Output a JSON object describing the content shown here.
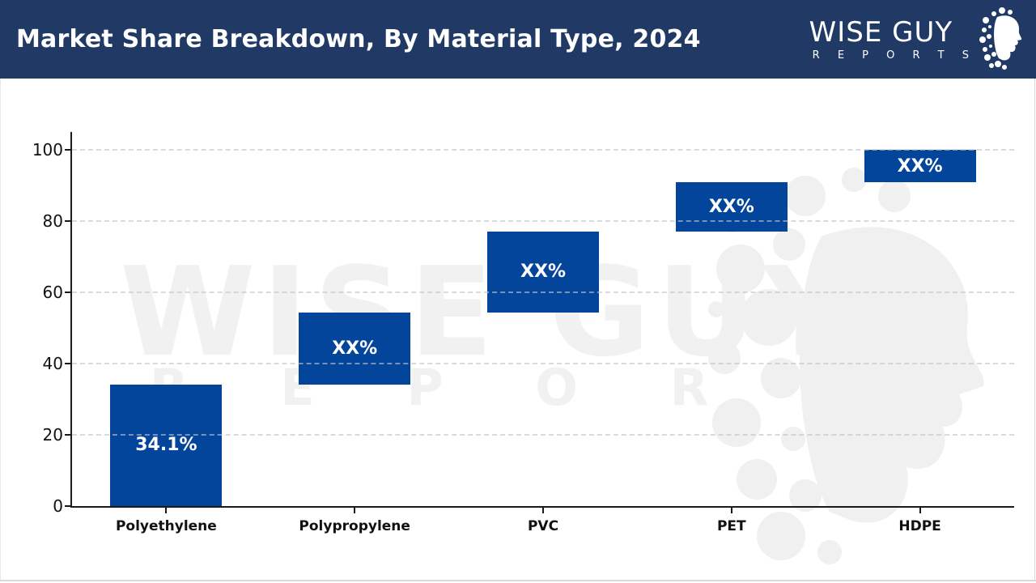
{
  "header": {
    "title": "Market Share Breakdown, By Material Type, 2024",
    "logo_line1": "WISE GUY",
    "logo_line2": "R E P O R T S"
  },
  "watermark": {
    "line1": "WISE GUY",
    "line2": "R E P O R T S"
  },
  "colors": {
    "header_bg": "#203a65",
    "bar": "#04459c",
    "grid": "#c7ccd5",
    "axis": "#1a1a1a",
    "watermark": "#f1f1f1",
    "hairline": "#d9d9d9",
    "bar_label": "#ffffff"
  },
  "chart_data": {
    "type": "bar",
    "subtype": "waterfall",
    "title": "Market Share Breakdown, By Material Type, 2024",
    "xlabel": "",
    "ylabel": "",
    "categories": [
      "Polyethylene",
      "Polypropylene",
      "PVC",
      "PET",
      "HDPE"
    ],
    "segments": [
      {
        "category": "Polyethylene",
        "start": 0,
        "end": 34.1,
        "label": "34.1%"
      },
      {
        "category": "Polypropylene",
        "start": 34.1,
        "end": 54.4,
        "label": "XX%"
      },
      {
        "category": "PVC",
        "start": 54.4,
        "end": 77.1,
        "label": "XX%"
      },
      {
        "category": "PET",
        "start": 77.1,
        "end": 90.8,
        "label": "XX%"
      },
      {
        "category": "HDPE",
        "start": 90.8,
        "end": 100,
        "label": "XX%"
      }
    ],
    "yticks": [
      0,
      20,
      40,
      60,
      80,
      100
    ],
    "ylim": [
      0,
      105
    ],
    "grid": "horizontal-dashed",
    "legend": false
  }
}
